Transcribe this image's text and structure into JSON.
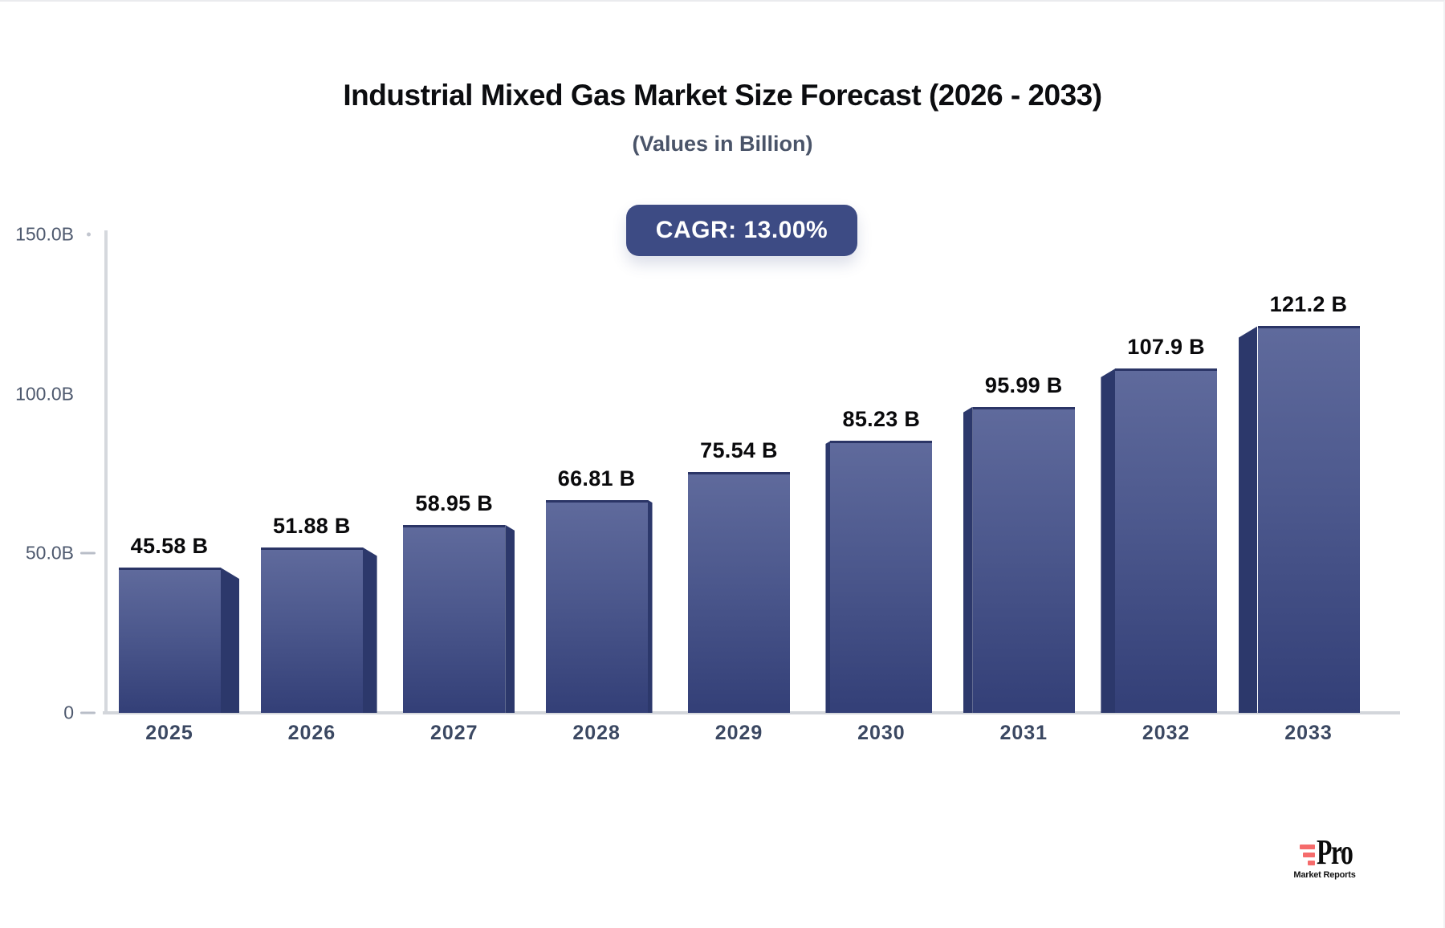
{
  "header": {
    "title": "Industrial Mixed Gas Market Size Forecast (2026 - 2033)",
    "subtitle": "(Values in Billion)",
    "cagr_label": "CAGR: 13.00%"
  },
  "chart_data": {
    "type": "bar",
    "title": "Industrial Mixed Gas Market Size Forecast (2026 - 2033)",
    "subtitle": "(Values in Billion)",
    "categories": [
      "2025",
      "2026",
      "2027",
      "2028",
      "2029",
      "2030",
      "2031",
      "2032",
      "2033"
    ],
    "values": [
      45.58,
      51.88,
      58.95,
      66.81,
      75.54,
      85.23,
      95.99,
      107.9,
      121.2
    ],
    "bar_labels": [
      "45.58 B",
      "51.88 B",
      "58.95 B",
      "66.81 B",
      "75.54 B",
      "85.23 B",
      "95.99 B",
      "107.9 B",
      "121.2 B"
    ],
    "cagr": "13.00%",
    "xlabel": "",
    "ylabel": "",
    "ylim": [
      0,
      150
    ],
    "grid": false,
    "legend": "none",
    "yticks": [
      {
        "label": "150.0B",
        "value": 150,
        "mark": "dot"
      },
      {
        "label": "100.0B",
        "value": 100,
        "mark": "none"
      },
      {
        "label": "50.0B",
        "value": 50,
        "mark": "dash"
      },
      {
        "label": "0",
        "value": 0,
        "mark": "dash"
      }
    ],
    "colors": {
      "bar_top": "#5f6a9c",
      "bar_bottom": "#333f77",
      "bar_side": "#2c386b",
      "bar_edge": "#2b3566",
      "axis": "#d3d6db",
      "badge_bg": "#3d4b84",
      "badge_text": "#ffffff",
      "value_label": "#0a0a0c",
      "category_label": "#3b4862",
      "tick_label": "#4e596e"
    }
  },
  "logo": {
    "brand": "Pro",
    "tagline": "Market Reports",
    "accent": "#f56b6b"
  }
}
